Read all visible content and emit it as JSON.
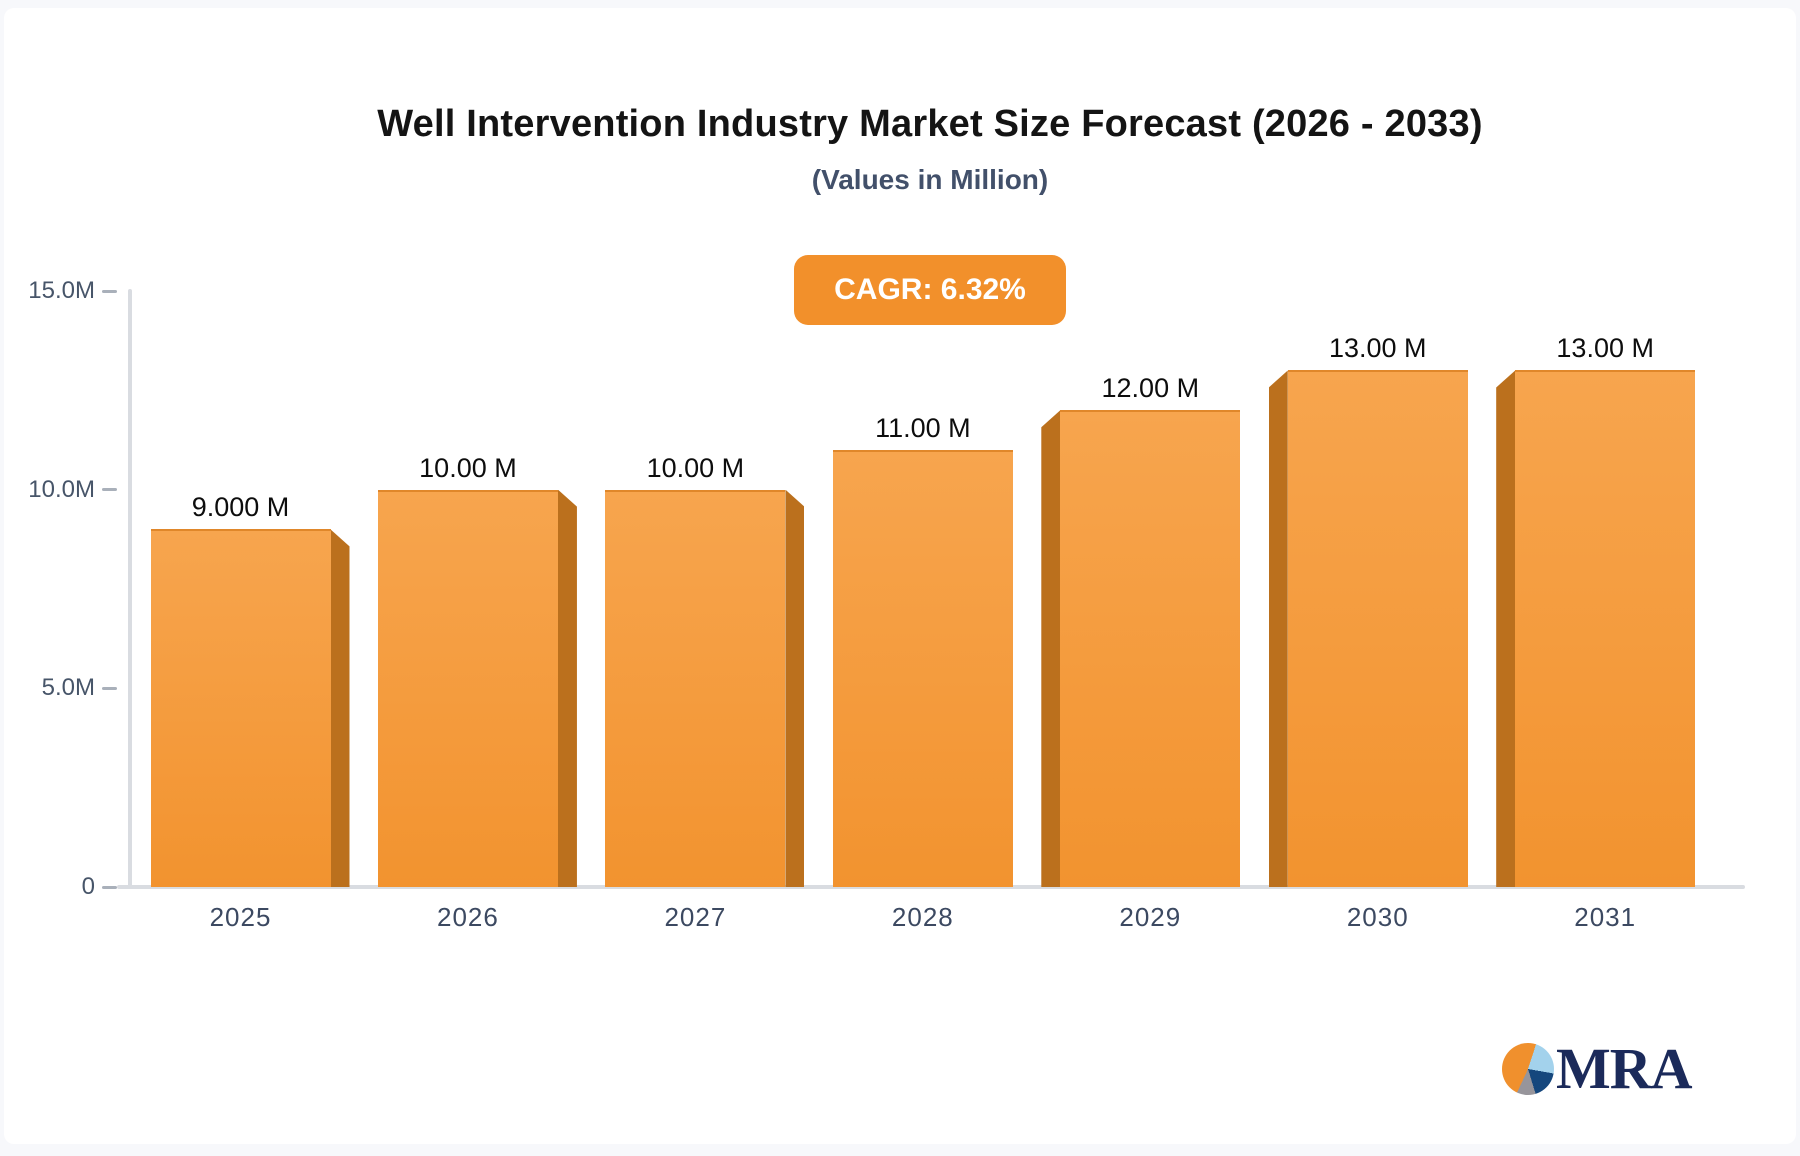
{
  "page": {
    "background": "#f7f8fb",
    "card_background": "#ffffff"
  },
  "header": {
    "title": "Well Intervention Industry Market Size Forecast (2026 - 2033)",
    "subtitle": "(Values in Million)"
  },
  "badge": {
    "label": "CAGR: 6.32%",
    "background": "#f2902b",
    "text_color": "#ffffff"
  },
  "chart_data": {
    "type": "bar",
    "title": "Well Intervention Industry Market Size Forecast (2026 - 2033)",
    "subtitle": "(Values in Million)",
    "cagr": "6.32%",
    "categories": [
      "2025",
      "2026",
      "2027",
      "2028",
      "2029",
      "2030",
      "2031"
    ],
    "values": [
      9,
      10,
      10,
      11,
      12,
      13,
      13
    ],
    "value_labels": [
      "9.000 M",
      "10.00 M",
      "10.00 M",
      "11.00 M",
      "12.00 M",
      "13.00 M",
      "13.00 M"
    ],
    "unit": "Million",
    "ylim": [
      0,
      15
    ],
    "yticks": [
      {
        "label": "15.0M",
        "value": 15
      },
      {
        "label": "10.0M",
        "value": 10
      },
      {
        "label": "5.0M",
        "value": 5
      },
      {
        "label": "0",
        "value": 0
      }
    ],
    "grid": false,
    "legend": "none",
    "colors": {
      "bar_face_top": "#f7a54e",
      "bar_face_bottom": "#f2932f",
      "bar_edge": "#e0872a",
      "bar_side": "#bb701d",
      "axis_line": "#d9dce1",
      "tick": "#a9b0ba",
      "y_label": "#475569",
      "x_label": "#3c4961",
      "value_label": "#0d0d0d"
    }
  },
  "logo": {
    "text": "MRA",
    "text_color": "#1b2a5a",
    "pie_colors": {
      "orange": "#f0902d",
      "lightblue": "#a3d2ec",
      "navy": "#15477d",
      "gray": "#97959b"
    }
  }
}
